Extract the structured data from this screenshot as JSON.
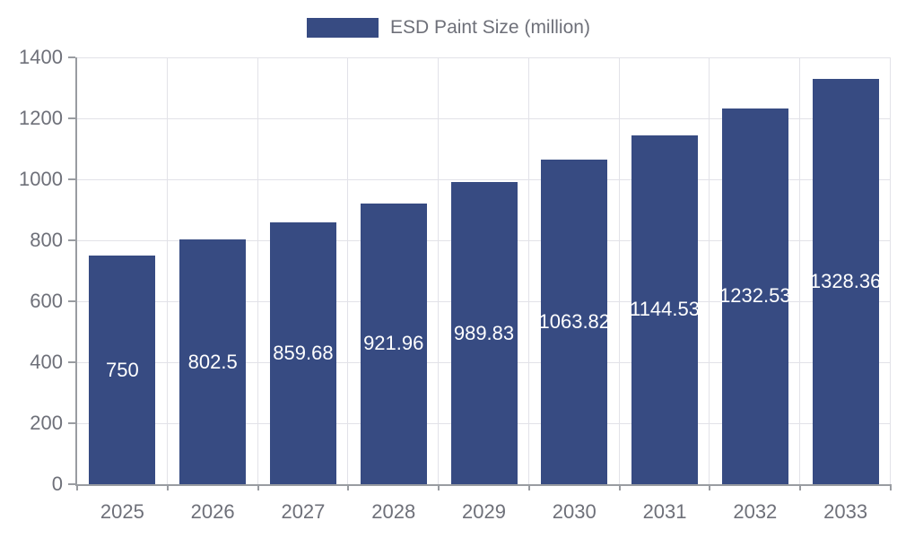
{
  "legend": {
    "label": "ESD Paint Size (million)"
  },
  "chart_data": {
    "type": "bar",
    "title": "",
    "xlabel": "",
    "ylabel": "",
    "series_name": "ESD Paint Size (million)",
    "categories": [
      "2025",
      "2026",
      "2027",
      "2028",
      "2029",
      "2030",
      "2031",
      "2032",
      "2033"
    ],
    "values": [
      750,
      802.5,
      859.68,
      921.96,
      989.83,
      1063.82,
      1144.53,
      1232.53,
      1328.36
    ],
    "bar_labels": [
      "750",
      "802.5",
      "859.68",
      "921.96",
      "989.83",
      "1063.82",
      "1144.53",
      "1232.53",
      "1328.36"
    ],
    "ylim": [
      0,
      1400
    ],
    "ytick_step": 200,
    "ytick_labels": [
      "0",
      "200",
      "400",
      "600",
      "800",
      "1000",
      "1200",
      "1400"
    ],
    "grid": true,
    "legend_position": "top",
    "colors": {
      "bar": "#374B82",
      "grid": "#E2E2E8",
      "axis": "#999CA1",
      "tick_text": "#6E7079",
      "bar_label_text": "#FFFFFF",
      "background": "#FFFFFF"
    }
  }
}
